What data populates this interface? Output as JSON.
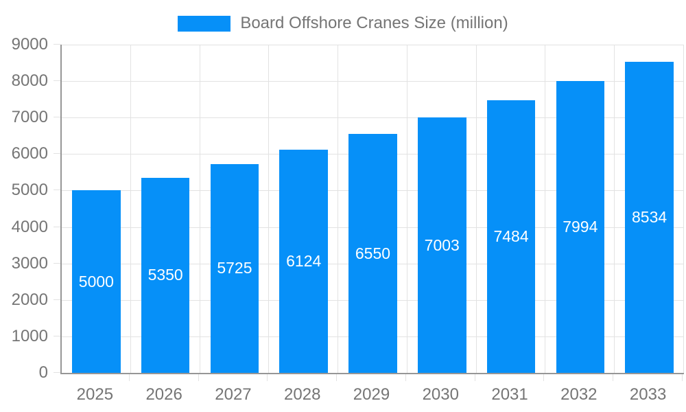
{
  "legend": {
    "label": "Board Offshore Cranes Size (million)"
  },
  "colors": {
    "bar": "#0690f8",
    "axis": "#969696",
    "grid": "#e2e2e2",
    "text": "#757575",
    "bar_label": "#ffffff"
  },
  "chart_data": {
    "type": "bar",
    "title": "Board Offshore Cranes Size (million)",
    "categories": [
      "2025",
      "2026",
      "2027",
      "2028",
      "2029",
      "2030",
      "2031",
      "2032",
      "2033"
    ],
    "values": [
      5000,
      5350,
      5725,
      6124,
      6550,
      7003,
      7484,
      7994,
      8534
    ],
    "xlabel": "",
    "ylabel": "",
    "ylim": [
      0,
      9000
    ],
    "y_ticks": [
      0,
      1000,
      2000,
      3000,
      4000,
      5000,
      6000,
      7000,
      8000,
      9000
    ],
    "grid": true,
    "legend_position": "top",
    "value_labels": "inside-center"
  }
}
